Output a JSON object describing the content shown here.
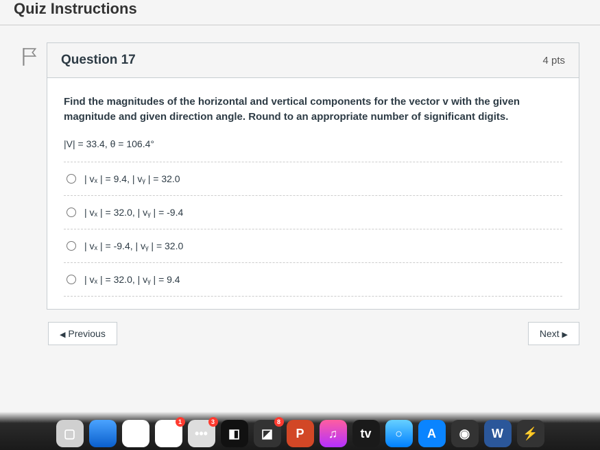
{
  "page": {
    "header": "Quiz Instructions"
  },
  "question": {
    "title": "Question 17",
    "points": "4 pts",
    "prompt": "Find the magnitudes of the horizontal and vertical components for the vector v with the given magnitude and given direction angle. Round to an appropriate number of significant digits.",
    "given": "|V| = 33.4, θ = 106.4°",
    "options": [
      "| vₓ | = 9.4, | vᵧ | = 32.0",
      "| vₓ | = 32.0, | vᵧ | = -9.4",
      "| vₓ | = -9.4, | vᵧ | = 32.0",
      "| vₓ | = 32.0, | vᵧ | = 9.4"
    ]
  },
  "nav": {
    "previous": "Previous",
    "next": "Next"
  },
  "dock": {
    "items": [
      {
        "glyph": "▢",
        "bg": "#d0d0d0",
        "name": "finder-icon"
      },
      {
        "glyph": "",
        "bg": "linear-gradient(#4aa3ff,#0a5fcc)",
        "name": "safari-icon"
      },
      {
        "glyph": "",
        "bg": "#ffffff",
        "name": "app-icon"
      },
      {
        "glyph": "✿",
        "bg": "#ffffff",
        "name": "photos-icon",
        "badge": "1"
      },
      {
        "glyph": "•••",
        "bg": "#dddddd",
        "name": "messages-icon",
        "badge": "3"
      },
      {
        "glyph": "◧",
        "bg": "#111111",
        "name": "app2-icon"
      },
      {
        "glyph": "◪",
        "bg": "#333333",
        "name": "app3-icon",
        "badge": "8"
      },
      {
        "glyph": "P",
        "bg": "#d24726",
        "name": "powerpoint-icon"
      },
      {
        "glyph": "♫",
        "bg": "linear-gradient(#ff5ea0,#b430ff)",
        "name": "music-icon"
      },
      {
        "glyph": "tv",
        "bg": "#1a1a1a",
        "name": "tv-icon"
      },
      {
        "glyph": "○",
        "bg": "linear-gradient(#66d0ff,#0080ff)",
        "name": "browser-icon"
      },
      {
        "glyph": "A",
        "bg": "#0a84ff",
        "name": "appstore-icon"
      },
      {
        "glyph": "◉",
        "bg": "#333333",
        "name": "app4-icon"
      },
      {
        "glyph": "W",
        "bg": "#2b579a",
        "name": "word-icon"
      },
      {
        "glyph": "⚡",
        "bg": "#333333",
        "name": "app5-icon"
      }
    ]
  }
}
